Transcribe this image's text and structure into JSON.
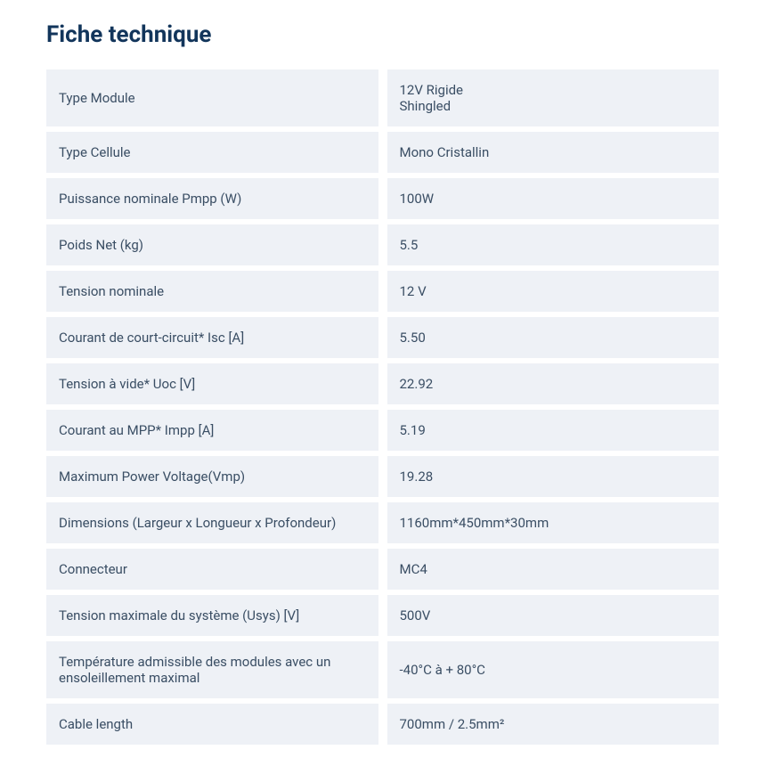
{
  "title": "Fiche technique",
  "colors": {
    "background": "#ffffff",
    "cell_background": "#eef1f6",
    "title_color": "#12355b",
    "text_color": "#3a4e64"
  },
  "typography": {
    "title_fontsize": 26,
    "title_weight": 700,
    "cell_fontsize": 15
  },
  "specs": [
    {
      "label": "Type Module",
      "value": "12V Rigide\nShingled"
    },
    {
      "label": "Type Cellule",
      "value": "Mono Cristallin"
    },
    {
      "label": "Puissance nominale Pmpp (W)",
      "value": "100W"
    },
    {
      "label": "Poids Net (kg)",
      "value": "5.5"
    },
    {
      "label": "Tension nominale",
      "value": "12 V"
    },
    {
      "label": "Courant de court-circuit* Isc [A]",
      "value": "5.50"
    },
    {
      "label": "Tension à vide* Uoc [V]",
      "value": "22.92"
    },
    {
      "label": "Courant au MPP* Impp [A]",
      "value": "5.19"
    },
    {
      "label": "Maximum Power Voltage(Vmp)",
      "value": "19.28"
    },
    {
      "label": "Dimensions (Largeur x Longueur x Profondeur)",
      "value": "1160mm*450mm*30mm"
    },
    {
      "label": "Connecteur",
      "value": "MC4"
    },
    {
      "label": "Tension maximale du système (Usys) [V]",
      "value": "500V"
    },
    {
      "label": "Température admissible des modules avec un ensoleillement maximal",
      "value": "-40°C à + 80°C"
    },
    {
      "label": "Cable length",
      "value": "700mm / 2.5mm²"
    }
  ]
}
